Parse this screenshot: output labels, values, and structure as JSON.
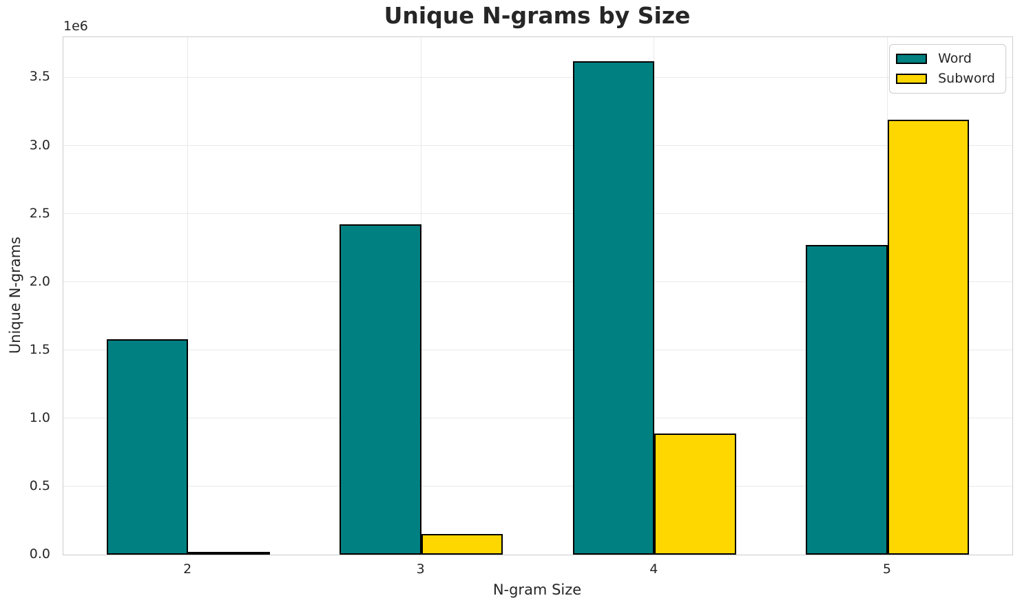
{
  "chart_data": {
    "type": "bar",
    "title": "Unique N-grams by Size",
    "xlabel": "N-gram Size",
    "ylabel": "Unique N-grams",
    "offset_label": "1e6",
    "categories": [
      "2",
      "3",
      "4",
      "5"
    ],
    "x_positions": [
      2,
      3,
      4,
      5
    ],
    "series": [
      {
        "name": "Word",
        "color": "#008080",
        "values": [
          1580000,
          2420000,
          3620000,
          2270000
        ]
      },
      {
        "name": "Subword",
        "color": "#FFD700",
        "values": [
          20000,
          150000,
          890000,
          3190000
        ]
      }
    ],
    "bar_width": 0.35,
    "bar_edge_color": "#000000",
    "xlim": [
      1.465,
      5.535
    ],
    "ylim": [
      0,
      3795000
    ],
    "yticks": [
      {
        "value": 0,
        "label": "0.0"
      },
      {
        "value": 500000,
        "label": "0.5"
      },
      {
        "value": 1000000,
        "label": "1.0"
      },
      {
        "value": 1500000,
        "label": "1.5"
      },
      {
        "value": 2000000,
        "label": "2.0"
      },
      {
        "value": 2500000,
        "label": "2.5"
      },
      {
        "value": 3000000,
        "label": "3.0"
      },
      {
        "value": 3500000,
        "label": "3.5"
      }
    ],
    "grid": true,
    "legend_position": "upper right",
    "colors": {
      "text": "#262626",
      "grid": "#e9e9e9",
      "spine": "#cccccc",
      "background": "#ffffff"
    }
  }
}
